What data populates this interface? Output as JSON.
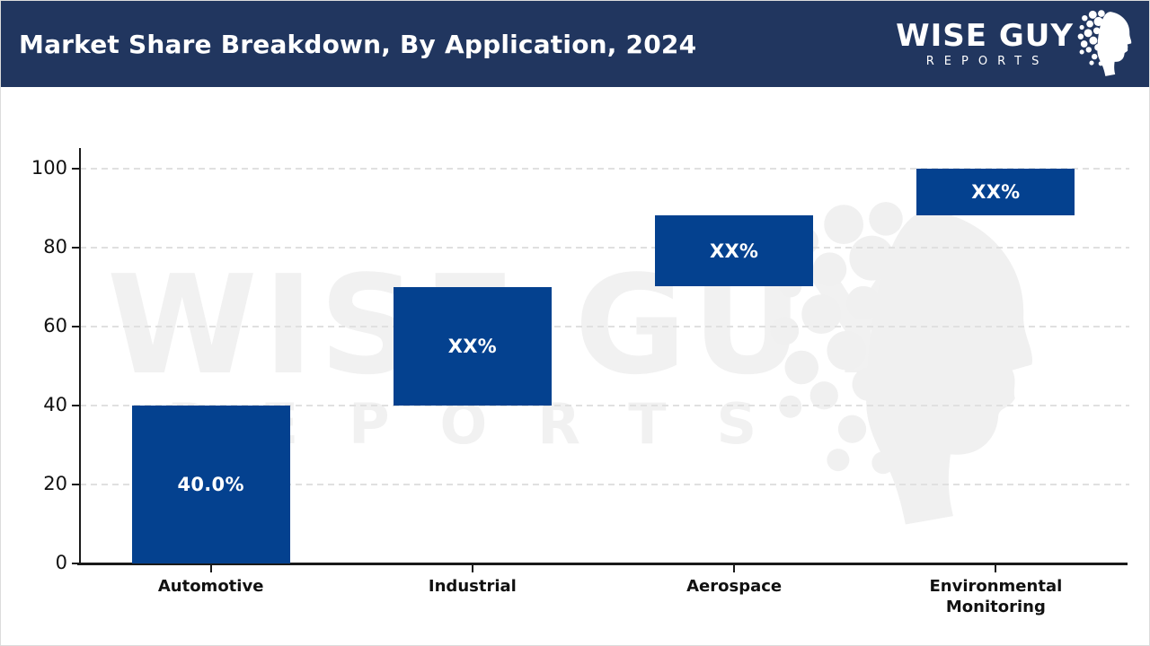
{
  "header": {
    "title": "Market Share Breakdown, By Application, 2024",
    "logo": {
      "line1": "WISE GUY",
      "line2": "REPORTS"
    },
    "bg_color": "#21365f"
  },
  "watermark": {
    "line1": "WISE GUY",
    "line2": "REPORTS"
  },
  "chart_data": {
    "type": "bar",
    "subtype": "waterfall",
    "title": "Market Share Breakdown, By Application, 2024",
    "categories": [
      "Automotive",
      "Industrial",
      "Aerospace",
      "Environmental Monitoring"
    ],
    "segments": [
      {
        "category": "Automotive",
        "start": 0,
        "end": 40,
        "label": "40.0%"
      },
      {
        "category": "Industrial",
        "start": 40,
        "end": 70,
        "label": "XX%"
      },
      {
        "category": "Aerospace",
        "start": 70,
        "end": 88,
        "label": "XX%"
      },
      {
        "category": "Environmental Monitoring",
        "start": 88,
        "end": 100,
        "label": "XX%"
      }
    ],
    "y_ticks": [
      0,
      20,
      40,
      60,
      80,
      100
    ],
    "ylim": [
      0,
      105
    ],
    "xlabel": "",
    "ylabel": "",
    "grid": "horizontal-dashed",
    "legend": "none",
    "bar_color": "#04418f",
    "bar_label_color": "#ffffff",
    "axis_color": "#1a1a1a",
    "grid_color": "#e0e0e0"
  }
}
